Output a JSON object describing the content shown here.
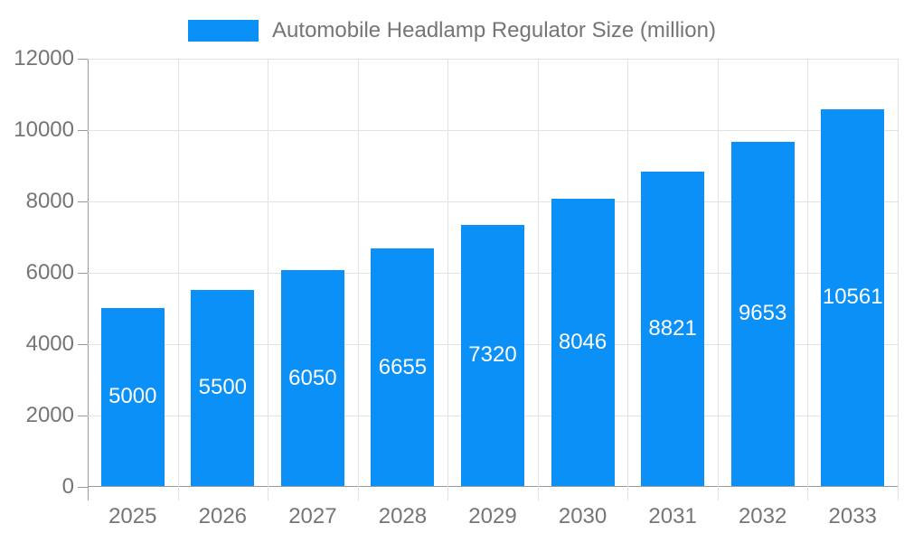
{
  "chart_data": {
    "type": "bar",
    "title": "Automobile Headlamp Regulator Size (million)",
    "legend": [
      "Automobile Headlamp Regulator Size (million)"
    ],
    "legend_position": "top",
    "categories": [
      "2025",
      "2026",
      "2027",
      "2028",
      "2029",
      "2030",
      "2031",
      "2032",
      "2033"
    ],
    "series": [
      {
        "name": "Automobile Headlamp Regulator Size (million)",
        "values": [
          5000,
          5500,
          6050,
          6655,
          7320,
          8046,
          8821,
          9653,
          10561
        ]
      }
    ],
    "bar_value_labels_visible": true,
    "xlabel": "",
    "ylabel": "",
    "ylim": [
      0,
      12000
    ],
    "yticks": [
      0,
      2000,
      4000,
      6000,
      8000,
      10000,
      12000
    ],
    "grid": "horizontal and vertical light gridlines",
    "colors": {
      "bar": "#0a90f6",
      "bar_label_text": "#ffffff",
      "axis_text": "#757575",
      "axis_line": "#999999",
      "gridline": "#e2e2e2",
      "background": "#ffffff"
    }
  }
}
